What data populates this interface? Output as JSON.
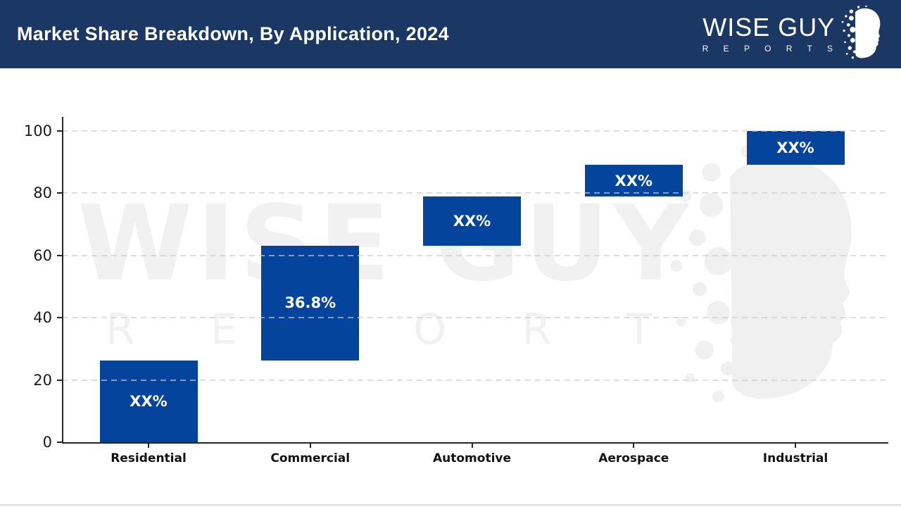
{
  "header": {
    "title": "Market Share Breakdown, By Application, 2024",
    "logo": {
      "line1": "WISE GUY",
      "line2": "R E P O R T S"
    }
  },
  "watermark": {
    "line1": "WISE GUY",
    "line2": "R E P O R T S"
  },
  "colors": {
    "header_bg": "#1b3764",
    "bar": "#05449c",
    "bar_label": "#ffffff",
    "axis": "#262626",
    "grid": "#d9d9d9",
    "watermark": "#f1f1f1"
  },
  "chart_data": {
    "type": "bar",
    "subtype": "waterfall",
    "title": "Market Share Breakdown, By Application, 2024",
    "categories": [
      "Residential",
      "Commercial",
      "Automotive",
      "Aerospace",
      "Industrial"
    ],
    "segments": [
      {
        "category": "Residential",
        "start": 0,
        "end": 26.3,
        "value": 26.3,
        "value_label": "XX%"
      },
      {
        "category": "Commercial",
        "start": 26.3,
        "end": 63.1,
        "value": 36.8,
        "value_label": "36.8%"
      },
      {
        "category": "Automotive",
        "start": 63.1,
        "end": 78.9,
        "value": 15.8,
        "value_label": "XX%"
      },
      {
        "category": "Aerospace",
        "start": 78.9,
        "end": 89.1,
        "value": 10.2,
        "value_label": "XX%"
      },
      {
        "category": "Industrial",
        "start": 89.1,
        "end": 100,
        "value": 10.9,
        "value_label": "XX%"
      }
    ],
    "yticks": [
      0,
      20,
      40,
      60,
      80,
      100
    ],
    "ylim": [
      0,
      104.5
    ],
    "xlabel": "",
    "ylabel": "",
    "grid": true,
    "legend": "none",
    "bar_color": "#05449c",
    "bar_label_color": "#ffffff"
  }
}
